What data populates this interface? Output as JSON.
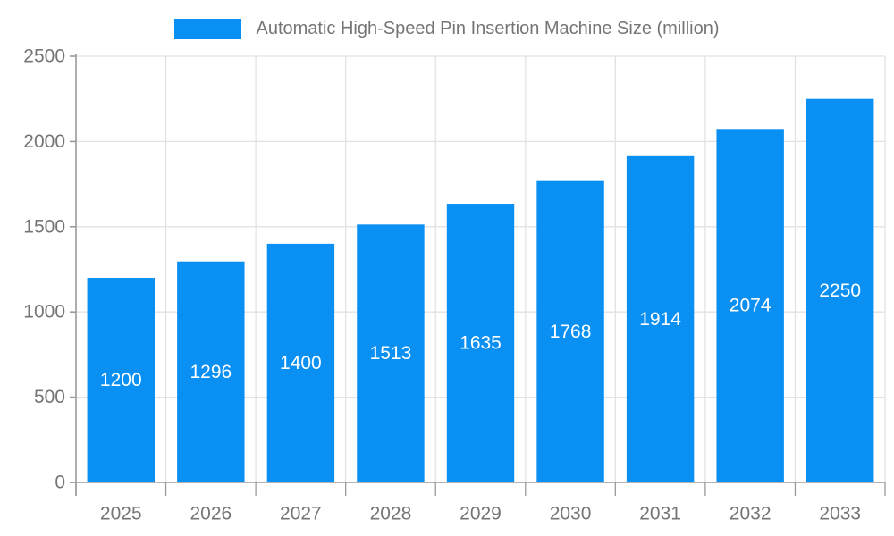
{
  "chart_data": {
    "type": "bar",
    "title": "Automatic High-Speed Pin Insertion Machine Size (million)",
    "categories": [
      "2025",
      "2026",
      "2027",
      "2028",
      "2029",
      "2030",
      "2031",
      "2032",
      "2033"
    ],
    "values": [
      1200,
      1296,
      1400,
      1513,
      1635,
      1768,
      1914,
      2074,
      2250
    ],
    "xlabel": "",
    "ylabel": "",
    "ylim": [
      0,
      2500
    ],
    "yticks": [
      0,
      500,
      1000,
      1500,
      2000,
      2500
    ],
    "ytick_labels": [
      "0",
      "500",
      "1000",
      "1500",
      "2000",
      "2500"
    ],
    "grid": true,
    "legend_position": "top",
    "bar_value_labels_inside": true
  },
  "colors": {
    "bar": "#0a8ff2",
    "grid": "#e2e2e2",
    "axis": "#9a9a9a",
    "tick_text": "#757575",
    "bar_label_text": "#ffffff",
    "legend_text": "#757575",
    "background": "#ffffff"
  }
}
